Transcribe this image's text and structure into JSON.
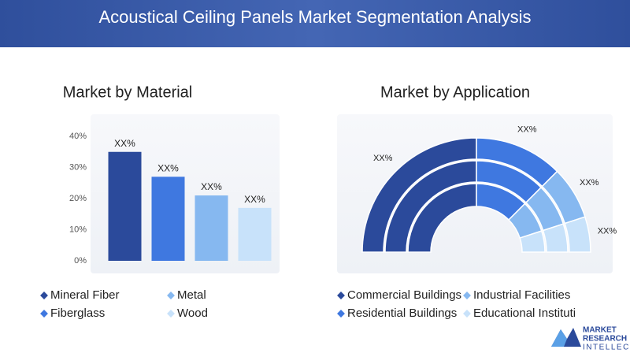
{
  "title": "Acoustical Ceiling Panels Market Segmentation Analysis",
  "chart_data": [
    {
      "type": "bar",
      "title": "Market by Material",
      "categories": [
        "Mineral Fiber",
        "Fiberglass",
        "Metal",
        "Wood"
      ],
      "values": [
        35,
        27,
        21,
        17
      ],
      "value_labels": [
        "XX%",
        "XX%",
        "XX%",
        "XX%"
      ],
      "colors": [
        "#2b4a9b",
        "#3f78e0",
        "#86b8f0",
        "#c8e2fa"
      ],
      "ylim": [
        0,
        40
      ],
      "yticks": [
        {
          "value": 0,
          "label": "0%"
        },
        {
          "value": 10,
          "label": "10%"
        },
        {
          "value": 20,
          "label": "20%"
        },
        {
          "value": 30,
          "label": "30%"
        },
        {
          "value": 40,
          "label": "40%"
        }
      ],
      "grid": false
    },
    {
      "type": "semi-donut",
      "title": "Market by Application",
      "categories": [
        "Commercial Buildings",
        "Residential Buildings",
        "Industrial Facilities",
        "Educational Instituti"
      ],
      "values": [
        50,
        25,
        15,
        10
      ],
      "value_labels": [
        "XX%",
        "XX%",
        "XX%",
        "XX%"
      ],
      "colors": [
        "#2b4a9b",
        "#3f78e0",
        "#86b8f0",
        "#c8e2fa"
      ]
    }
  ],
  "logo": {
    "lines": [
      "MARKET",
      "RESEARCH",
      "INTELLECT"
    ]
  }
}
